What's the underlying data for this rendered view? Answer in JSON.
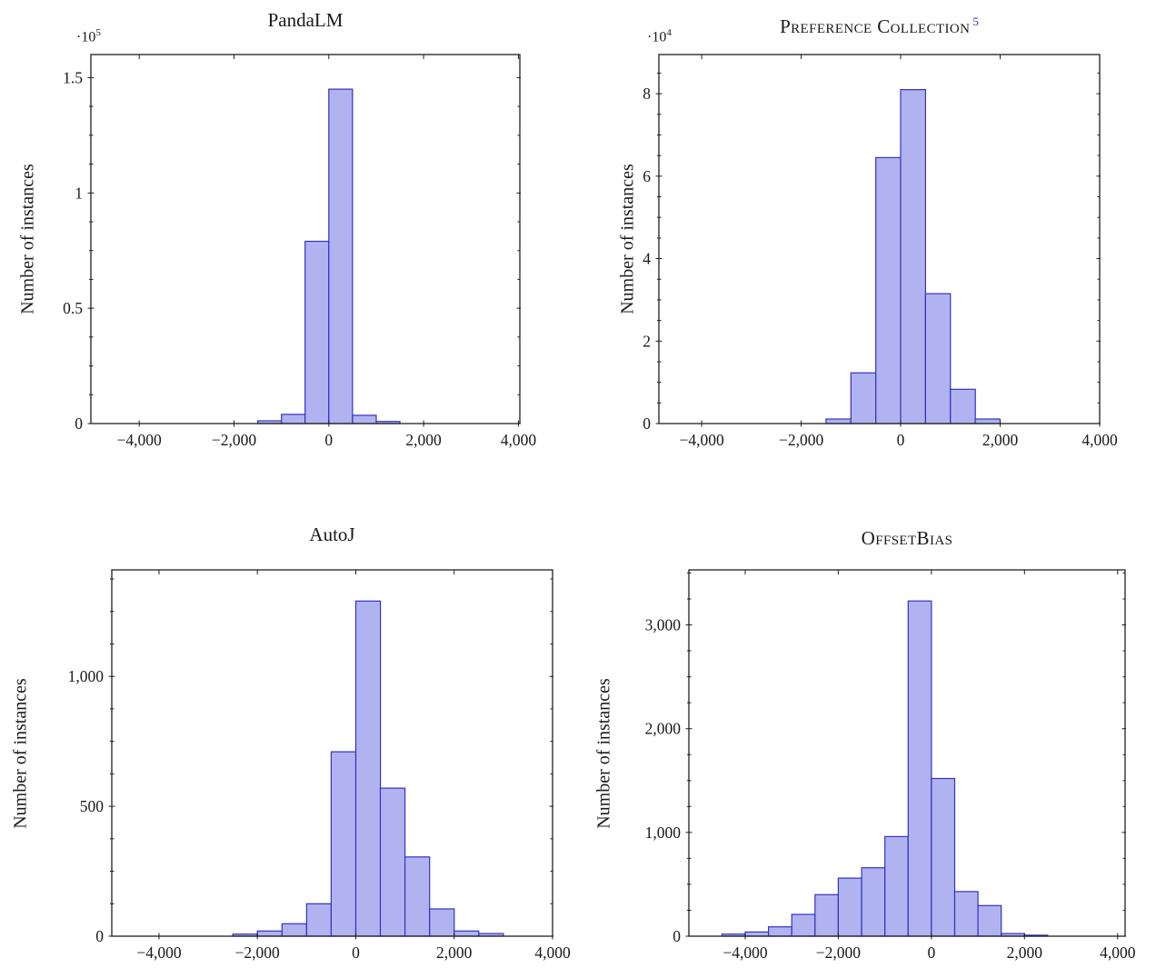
{
  "colors": {
    "background": "#ffffff",
    "bar_fill": "#b1b3f0",
    "bar_stroke": "#3232c0",
    "axis": "#1f1f1f",
    "text": "#1a1a1a",
    "title_superscript_color": "#333399"
  },
  "chart_data": [
    {
      "type": "bar",
      "subtype": "histogram",
      "title": "PandaLM",
      "title_style": "normal",
      "title_superscript": "",
      "ylabel": "Number of instances",
      "xlabel": "",
      "y_multiplier_base": "·10",
      "y_multiplier_exponent": "5",
      "grid": false,
      "legend": null,
      "bin_width": 500,
      "xlim": [
        -5020,
        4030
      ],
      "ylim": [
        0,
        160000
      ],
      "y_minor_step": 12500,
      "x_ticks": [
        {
          "v": -4000,
          "label": "−4,000"
        },
        {
          "v": -2000,
          "label": "−2,000"
        },
        {
          "v": 0,
          "label": "0"
        },
        {
          "v": 2000,
          "label": "2,000"
        },
        {
          "v": 4000,
          "label": "4,000"
        }
      ],
      "y_ticks": [
        {
          "v": 0,
          "label": "0"
        },
        {
          "v": 50000,
          "label": "0.5"
        },
        {
          "v": 100000,
          "label": "1"
        },
        {
          "v": 150000,
          "label": "1.5"
        }
      ],
      "bins": [
        {
          "x0": -1500,
          "count": 1200
        },
        {
          "x0": -1000,
          "count": 4000
        },
        {
          "x0": -500,
          "count": 79000
        },
        {
          "x0": 0,
          "count": 145000
        },
        {
          "x0": 500,
          "count": 3600
        },
        {
          "x0": 1000,
          "count": 900
        }
      ]
    },
    {
      "type": "bar",
      "subtype": "histogram",
      "title": "Preference Collection",
      "title_style": "small-caps",
      "title_superscript": "5",
      "ylabel": "Number of instances",
      "xlabel": "",
      "y_multiplier_base": "·10",
      "y_multiplier_exponent": "4",
      "grid": false,
      "legend": null,
      "bin_width": 500,
      "xlim": [
        -4860,
        4000
      ],
      "ylim": [
        0,
        89500
      ],
      "y_minor_step": 5000,
      "x_ticks": [
        {
          "v": -4000,
          "label": "−4,000"
        },
        {
          "v": -2000,
          "label": "−2,000"
        },
        {
          "v": 0,
          "label": "0"
        },
        {
          "v": 2000,
          "label": "2,000"
        },
        {
          "v": 4000,
          "label": "4,000"
        }
      ],
      "y_ticks": [
        {
          "v": 0,
          "label": "0"
        },
        {
          "v": 20000,
          "label": "2"
        },
        {
          "v": 40000,
          "label": "4"
        },
        {
          "v": 60000,
          "label": "6"
        },
        {
          "v": 80000,
          "label": "8"
        }
      ],
      "bins": [
        {
          "x0": -1500,
          "count": 1100
        },
        {
          "x0": -1000,
          "count": 12300
        },
        {
          "x0": -500,
          "count": 64500
        },
        {
          "x0": 0,
          "count": 81000
        },
        {
          "x0": 500,
          "count": 31500
        },
        {
          "x0": 1000,
          "count": 8300
        },
        {
          "x0": 1500,
          "count": 1100
        }
      ]
    },
    {
      "type": "bar",
      "subtype": "histogram",
      "title": "AutoJ",
      "title_style": "normal",
      "title_superscript": "",
      "ylabel": "Number of instances",
      "xlabel": "",
      "y_multiplier_base": "",
      "y_multiplier_exponent": "",
      "grid": false,
      "legend": null,
      "bin_width": 500,
      "xlim": [
        -4960,
        4000
      ],
      "ylim": [
        0,
        1410
      ],
      "y_minor_step": 125,
      "x_ticks": [
        {
          "v": -4000,
          "label": "−4,000"
        },
        {
          "v": -2000,
          "label": "−2,000"
        },
        {
          "v": 0,
          "label": "0"
        },
        {
          "v": 2000,
          "label": "2,000"
        },
        {
          "v": 4000,
          "label": "4,000"
        }
      ],
      "y_ticks": [
        {
          "v": 0,
          "label": "0"
        },
        {
          "v": 500,
          "label": "500"
        },
        {
          "v": 1000,
          "label": "1,000"
        }
      ],
      "bins": [
        {
          "x0": -2500,
          "count": 8
        },
        {
          "x0": -2000,
          "count": 20
        },
        {
          "x0": -1500,
          "count": 48
        },
        {
          "x0": -1000,
          "count": 125
        },
        {
          "x0": -500,
          "count": 710
        },
        {
          "x0": 0,
          "count": 1290
        },
        {
          "x0": 500,
          "count": 570
        },
        {
          "x0": 1000,
          "count": 305
        },
        {
          "x0": 1500,
          "count": 105
        },
        {
          "x0": 2000,
          "count": 20
        },
        {
          "x0": 2500,
          "count": 10
        }
      ]
    },
    {
      "type": "bar",
      "subtype": "histogram",
      "title": "OffsetBias",
      "title_style": "small-caps",
      "title_superscript": "",
      "ylabel": "Number of instances",
      "xlabel": "",
      "y_multiplier_base": "",
      "y_multiplier_exponent": "",
      "grid": false,
      "legend": null,
      "bin_width": 500,
      "xlim": [
        -5210,
        4160
      ],
      "ylim": [
        0,
        3530
      ],
      "y_minor_step": 250,
      "x_ticks": [
        {
          "v": -4000,
          "label": "−4,000"
        },
        {
          "v": -2000,
          "label": "−2,000"
        },
        {
          "v": 0,
          "label": "0"
        },
        {
          "v": 2000,
          "label": "2,000"
        },
        {
          "v": 4000,
          "label": "4,000"
        }
      ],
      "y_ticks": [
        {
          "v": 0,
          "label": "0"
        },
        {
          "v": 1000,
          "label": "1,000"
        },
        {
          "v": 2000,
          "label": "2,000"
        },
        {
          "v": 3000,
          "label": "3,000"
        }
      ],
      "bins": [
        {
          "x0": -4500,
          "count": 20
        },
        {
          "x0": -4000,
          "count": 40
        },
        {
          "x0": -3500,
          "count": 90
        },
        {
          "x0": -3000,
          "count": 210
        },
        {
          "x0": -2500,
          "count": 400
        },
        {
          "x0": -2000,
          "count": 560
        },
        {
          "x0": -1500,
          "count": 660
        },
        {
          "x0": -1000,
          "count": 960
        },
        {
          "x0": -500,
          "count": 3230
        },
        {
          "x0": 0,
          "count": 1520
        },
        {
          "x0": 500,
          "count": 430
        },
        {
          "x0": 1000,
          "count": 295
        },
        {
          "x0": 1500,
          "count": 25
        },
        {
          "x0": 2000,
          "count": 10
        }
      ]
    }
  ]
}
